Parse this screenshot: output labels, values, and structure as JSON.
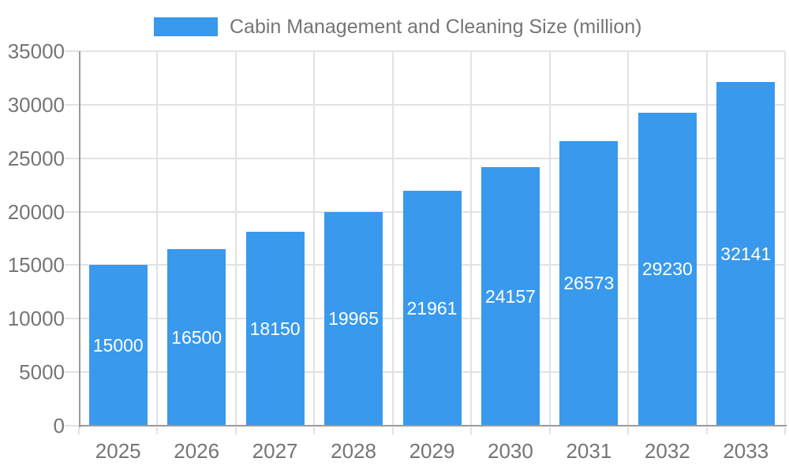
{
  "legend": {
    "label": "Cabin Management and Cleaning Size (million)"
  },
  "chart_data": {
    "type": "bar",
    "title": "Cabin Management and Cleaning Size (million)",
    "categories": [
      "2025",
      "2026",
      "2027",
      "2028",
      "2029",
      "2030",
      "2031",
      "2032",
      "2033"
    ],
    "values": [
      15000,
      16500,
      18150,
      19965,
      21961,
      24157,
      26573,
      29230,
      32141
    ],
    "xlabel": "",
    "ylabel": "",
    "ylim": [
      0,
      35000
    ],
    "ytick_step": 5000,
    "grid": true,
    "legend_position": "top",
    "bar_label_position": "inside-center"
  },
  "colors": {
    "bar": "#3999ec",
    "bar_label": "#ffffff",
    "gridline": "#e2e2e2",
    "axis_line": "#9a9a9a",
    "tick_text": "#757575",
    "title_text": "#757575",
    "background": "#ffffff"
  }
}
